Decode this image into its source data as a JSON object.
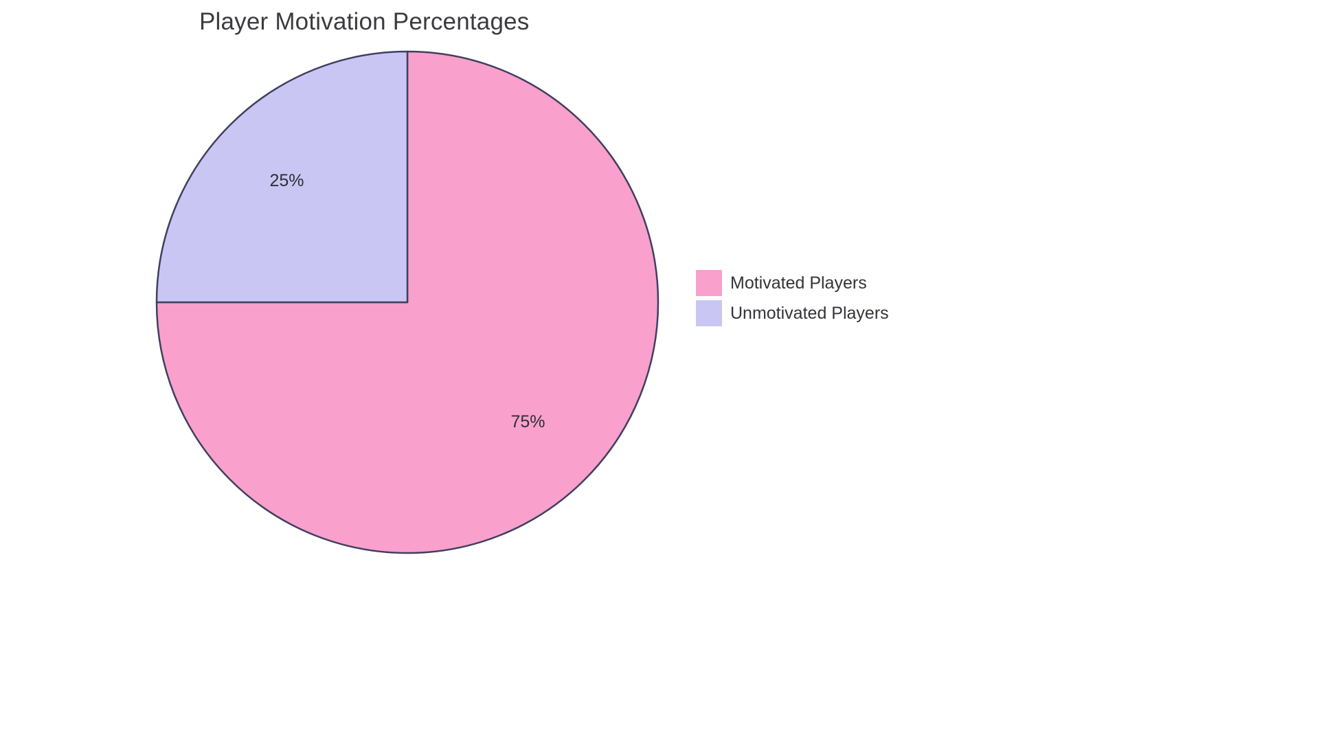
{
  "chart_data": {
    "type": "pie",
    "title": "Player Motivation Percentages",
    "slices": [
      {
        "label": "Motivated Players",
        "value": 75,
        "display": "75%",
        "color": "#F9A0CD"
      },
      {
        "label": "Unmotivated Players",
        "value": 25,
        "display": "25%",
        "color": "#C9C6F4"
      }
    ],
    "stroke_color": "#3f3f5e",
    "stroke_width": 2.5,
    "start_angle_deg": -90,
    "direction": "clockwise",
    "legend_position": "right",
    "background": "#ffffff"
  }
}
